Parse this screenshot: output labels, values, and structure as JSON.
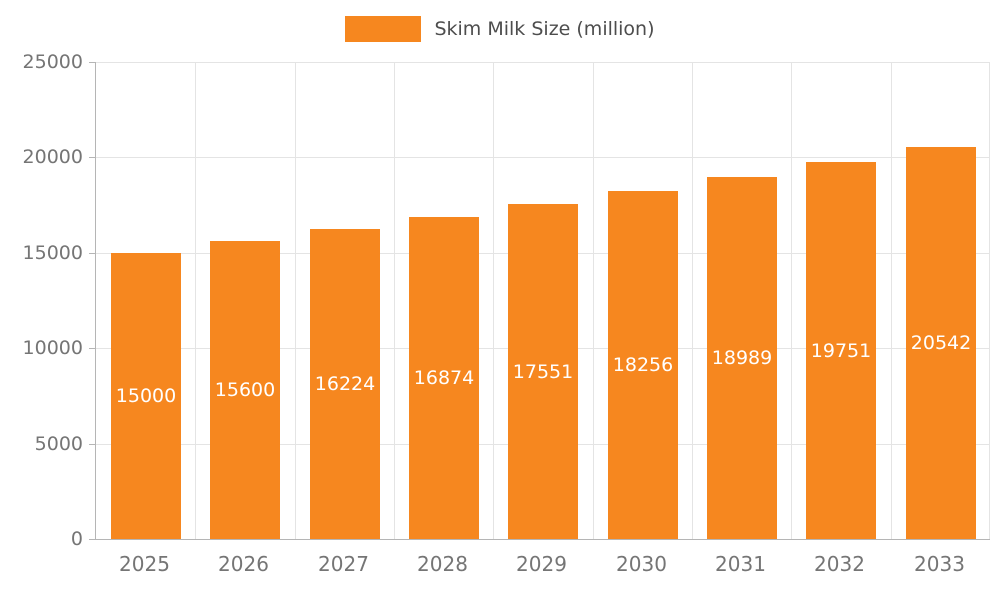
{
  "chart_data": {
    "type": "bar",
    "legend": "Skim Milk Size (million)",
    "legend_position": "top",
    "categories": [
      "2025",
      "2026",
      "2027",
      "2028",
      "2029",
      "2030",
      "2031",
      "2032",
      "2033"
    ],
    "values": [
      15000,
      15600,
      16224,
      16874,
      17551,
      18256,
      18989,
      19751,
      20542
    ],
    "ylim": [
      0,
      25000
    ],
    "yticks": [
      0,
      5000,
      10000,
      15000,
      20000,
      25000
    ],
    "grid": true,
    "bar_color": "#F6871F",
    "value_label_color": "#FFFFFF"
  }
}
